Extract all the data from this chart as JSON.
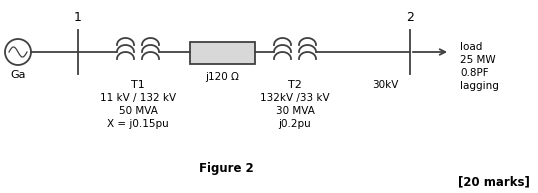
{
  "bg_color": "#ffffff",
  "line_color": "#404040",
  "title": "Figure 2",
  "title_fontsize": 8.5,
  "title_fontweight": "bold",
  "marks_text": "[20 marks]",
  "marks_fontsize": 8.5,
  "node1_label": "1",
  "node2_label": "2",
  "T1_label": "T1",
  "T2_label": "T2",
  "T1_specs": [
    "11 kV / 132 kV",
    "50 MVA",
    "X = j0.15pu"
  ],
  "T2_specs": [
    "132kV /33 kV",
    "30 MVA",
    "j0.2pu"
  ],
  "impedance_label": "j120 Ω",
  "load_label": [
    "load",
    "25 MW",
    "0.8PF",
    "lagging"
  ],
  "bus30kV_label": "30kV",
  "ga_label": "Ga",
  "font_size": 8,
  "small_font_size": 7.5
}
